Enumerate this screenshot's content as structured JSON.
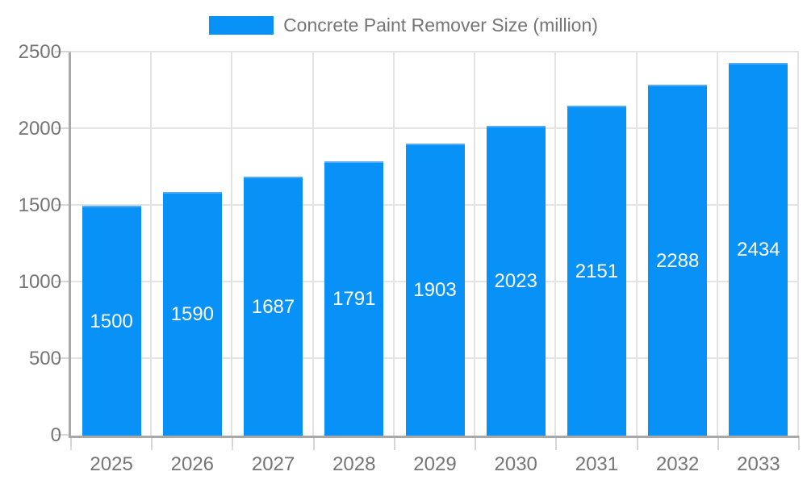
{
  "legend": {
    "label": "Concrete Paint Remover Size (million)"
  },
  "chart_data": {
    "type": "bar",
    "title": "Concrete Paint Remover Size (million)",
    "series_name": "Concrete Paint Remover Size (million)",
    "categories": [
      "2025",
      "2026",
      "2027",
      "2028",
      "2029",
      "2030",
      "2031",
      "2032",
      "2033"
    ],
    "values": [
      1500,
      1590,
      1687,
      1791,
      1903,
      2023,
      2151,
      2288,
      2434
    ],
    "xlabel": "",
    "ylabel": "",
    "ylim": [
      0,
      2500
    ],
    "yticks": [
      0,
      500,
      1000,
      1500,
      2000,
      2500
    ],
    "grid": true,
    "legend_position": "top",
    "bar_label_position": "inside-center",
    "colors": {
      "bar": "#0892F8",
      "bar_top_edge": "#55ABF3",
      "bar_label": "#FFFFFF",
      "axis_text": "#757575",
      "gridline": "#E3E3E3",
      "tick": "#D6D6D6",
      "axis_line": "#A8A8A8",
      "background": "#FFFFFF"
    }
  }
}
